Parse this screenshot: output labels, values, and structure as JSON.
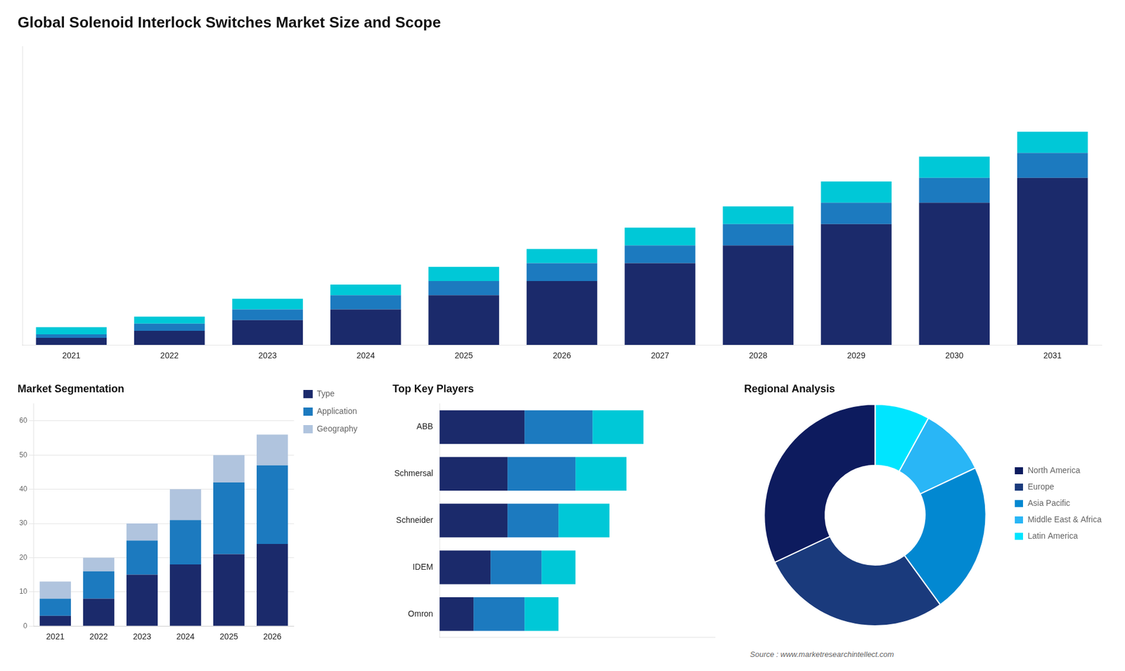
{
  "chart_data": [
    {
      "type": "bar",
      "title": "Global Solenoid Interlock Switches Market Size and Scope",
      "categories": [
        "2021",
        "2022",
        "2023",
        "2024",
        "2025",
        "2026",
        "2027",
        "2028",
        "2029",
        "2030",
        "2031"
      ],
      "series": [
        {
          "color": "#1b2a6b",
          "values": [
            2,
            4,
            7,
            10,
            14,
            18,
            23,
            28,
            34,
            40,
            47
          ]
        },
        {
          "color": "#1c7abf",
          "values": [
            1,
            2,
            3,
            4,
            4,
            5,
            5,
            6,
            6,
            7,
            7
          ]
        },
        {
          "color": "#00c8d7",
          "values": [
            2,
            2,
            3,
            3,
            4,
            4,
            5,
            5,
            6,
            6,
            6
          ]
        }
      ],
      "stacked": true,
      "ylim": [
        0,
        84
      ],
      "tick_labels": "x",
      "grid": false
    },
    {
      "type": "bar",
      "title": "Market Segmentation",
      "categories": [
        "2021",
        "2022",
        "2023",
        "2024",
        "2025",
        "2026"
      ],
      "series": [
        {
          "name": "Type",
          "color": "#1b2a6b",
          "values": [
            3,
            8,
            15,
            18,
            21,
            24
          ]
        },
        {
          "name": "Application",
          "color": "#1c7abf",
          "values": [
            5,
            8,
            10,
            13,
            21,
            23
          ]
        },
        {
          "name": "Geography",
          "color": "#b0c4de",
          "values": [
            5,
            4,
            5,
            9,
            8,
            9
          ]
        }
      ],
      "stacked": true,
      "ylim": [
        0,
        65
      ],
      "yticks": [
        0,
        10,
        20,
        30,
        40,
        50,
        60
      ],
      "grid": true,
      "legend": "right"
    },
    {
      "type": "bar",
      "orientation": "horizontal",
      "title": "Top Key Players",
      "categories": [
        "ABB",
        "Schmersal",
        "Schneider",
        "IDEM",
        "Omron"
      ],
      "series": [
        {
          "color": "#1b2a6b",
          "values": [
            5,
            4,
            4,
            3,
            2
          ]
        },
        {
          "color": "#1c7abf",
          "values": [
            4,
            4,
            3,
            3,
            3
          ]
        },
        {
          "color": "#00c8d7",
          "values": [
            3,
            3,
            3,
            2,
            2
          ]
        }
      ],
      "stacked": true,
      "xlim": [
        0,
        16.2
      ],
      "tick_labels": "y",
      "grid": false
    },
    {
      "type": "doughnut",
      "title": "Regional Analysis",
      "categories": [
        "Latin America",
        "Middle East &\nAfrica",
        "Asia Pacific",
        "Europe",
        "North America"
      ],
      "values": [
        8,
        10,
        22,
        28,
        32
      ],
      "colors": [
        "#00e5ff",
        "#29b6f6",
        "#0288d1",
        "#1a3a7c",
        "#0d1b5e"
      ],
      "legend": "right",
      "annotations": [
        "Source : www.marketresearchintellect.com"
      ]
    }
  ]
}
